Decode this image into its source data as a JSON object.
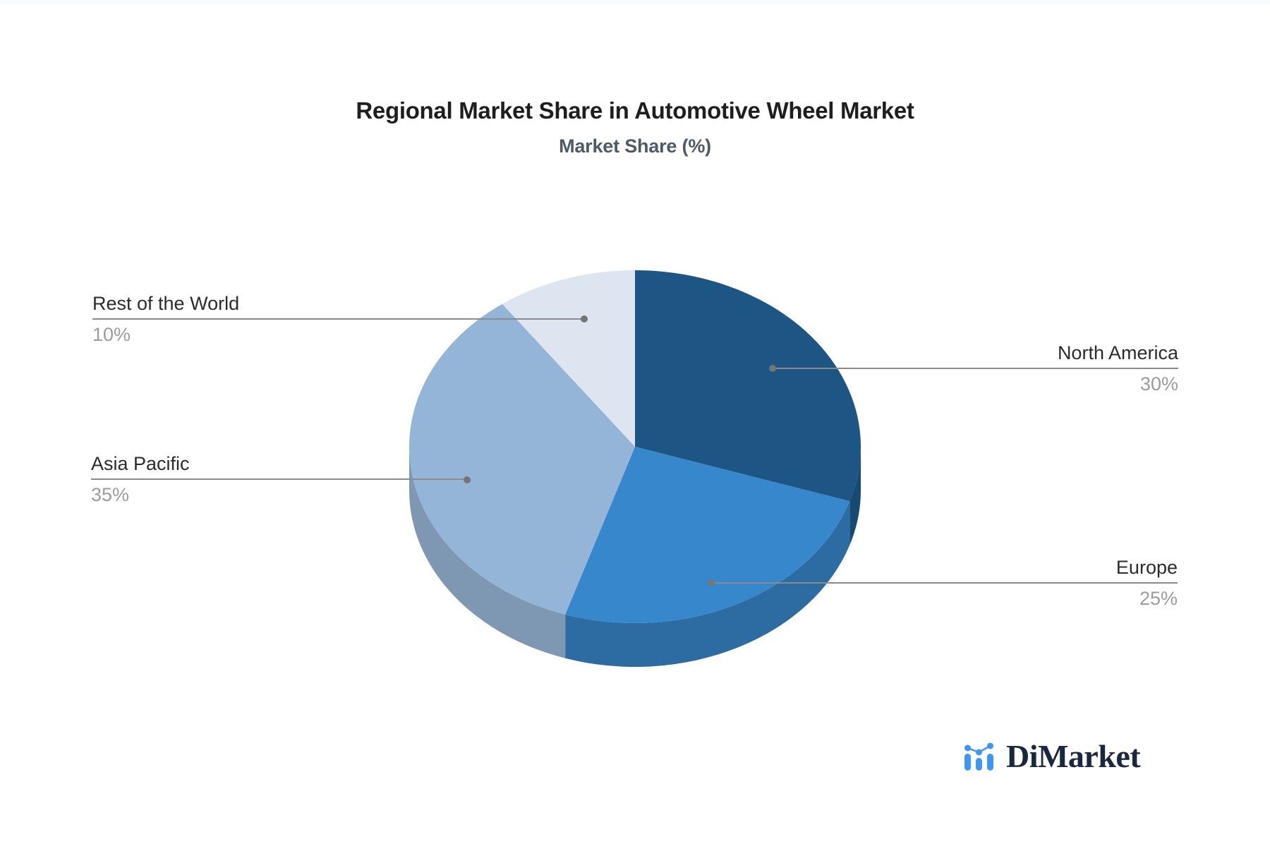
{
  "page": {
    "background": "#ffffff",
    "top_strip_color": "#f7f8f9"
  },
  "header": {
    "title": "Regional Market Share in Automotive Wheel Market",
    "subtitle": "Market Share (%)"
  },
  "chart_data": {
    "type": "pie",
    "title": "Regional Market Share in Automotive Wheel Market",
    "subtitle": "Market Share (%)",
    "unit": "%",
    "effect": "3d",
    "start_angle": "12-o-clock",
    "direction": "clockwise",
    "legend": "none, callout labels with leader lines",
    "label_line_color": "#8a8a8a",
    "label_name_color": "#2b2b2b",
    "label_value_color": "#9c9c9c",
    "slices": [
      {
        "name": "North America",
        "value": 30,
        "pct_label": "30%",
        "color": "#1d5585",
        "side_color": "#164a72"
      },
      {
        "name": "Europe",
        "value": 25,
        "pct_label": "25%",
        "color": "#3787cd",
        "side_color": "#2d6ca3"
      },
      {
        "name": "Asia Pacific",
        "value": 35,
        "pct_label": "35%",
        "color": "#95b5d8",
        "side_color": "#7e97b2"
      },
      {
        "name": "Rest of the World",
        "value": 10,
        "pct_label": "10%",
        "color": "#dde5f0",
        "side_color": "#c6d2e2"
      }
    ]
  },
  "branding": {
    "logo_text": "DiMarket",
    "logo_text_color": "#1a2740",
    "logo_icon": "bar-chart-with-trend-dots-icon",
    "logo_icon_color": "#3d96f3"
  }
}
